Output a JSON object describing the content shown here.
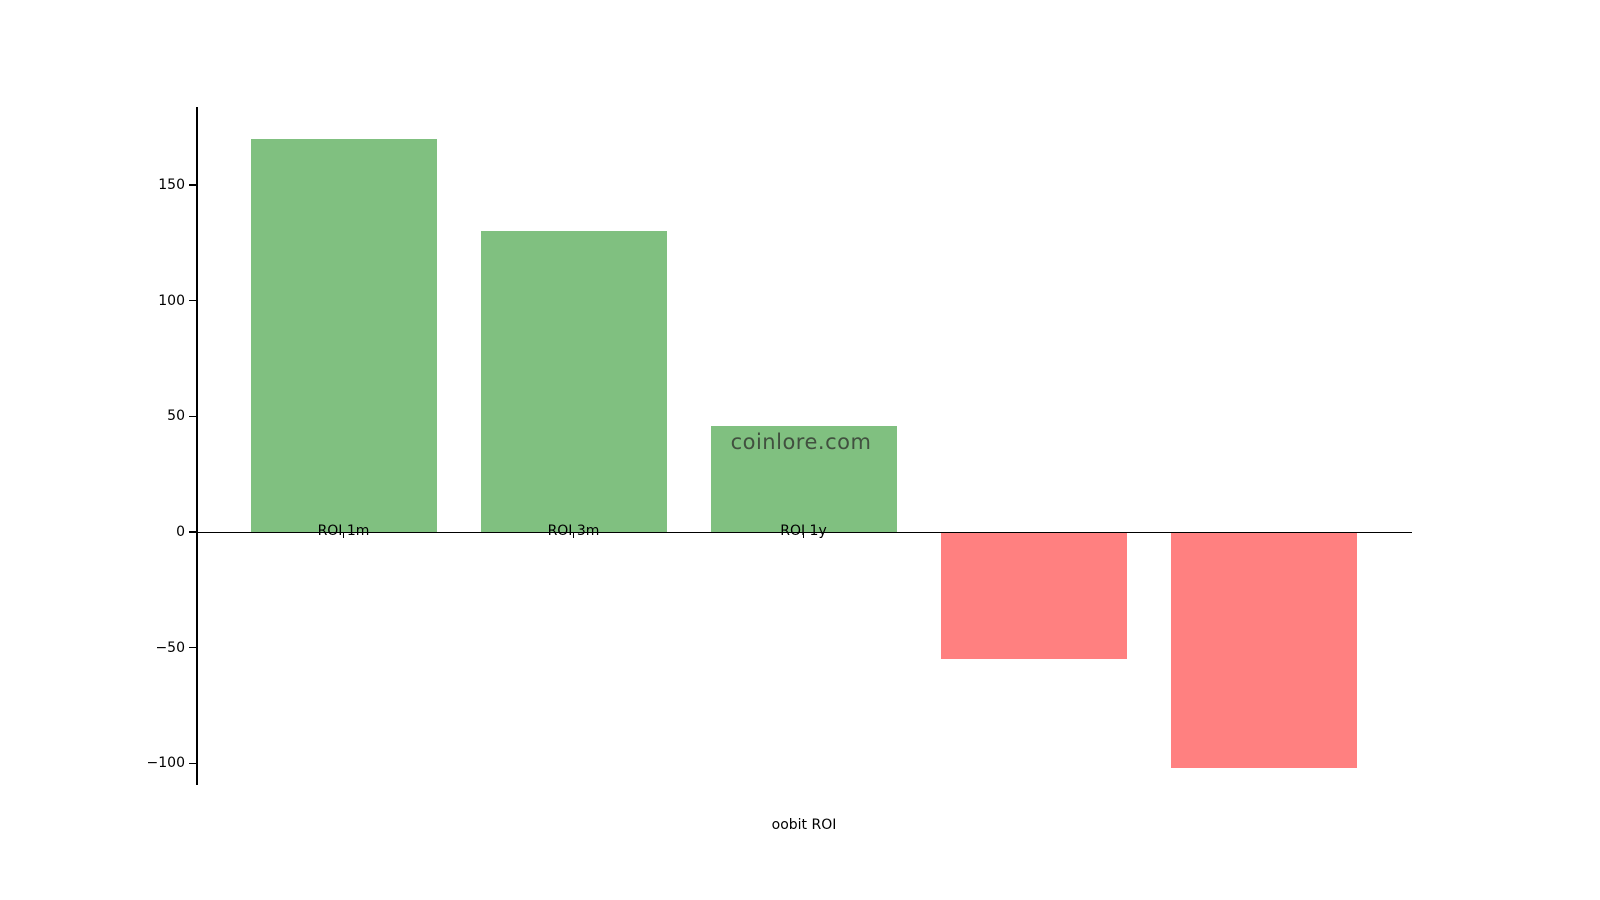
{
  "watermark": {
    "text": "coinlore.com",
    "color": "#41503f"
  },
  "axis_color": "#000000",
  "chart_data": {
    "type": "bar",
    "categories": [
      "ROI 1m",
      "ROI 3m",
      "ROI 1y",
      "",
      ""
    ],
    "values": [
      170,
      130,
      46,
      -55,
      -102
    ],
    "bar_colors": [
      "#80C080",
      "#80C080",
      "#80C080",
      "#FF8080",
      "#FF8080"
    ],
    "positive_color": "#80C080",
    "negative_color": "#FF8080",
    "title": "",
    "xlabel": "oobit ROI",
    "ylabel": "",
    "ylim": [
      -110,
      185
    ],
    "yticks": [
      150,
      100,
      50,
      0,
      -50,
      -100
    ],
    "grid": false,
    "legend_position": "none"
  }
}
